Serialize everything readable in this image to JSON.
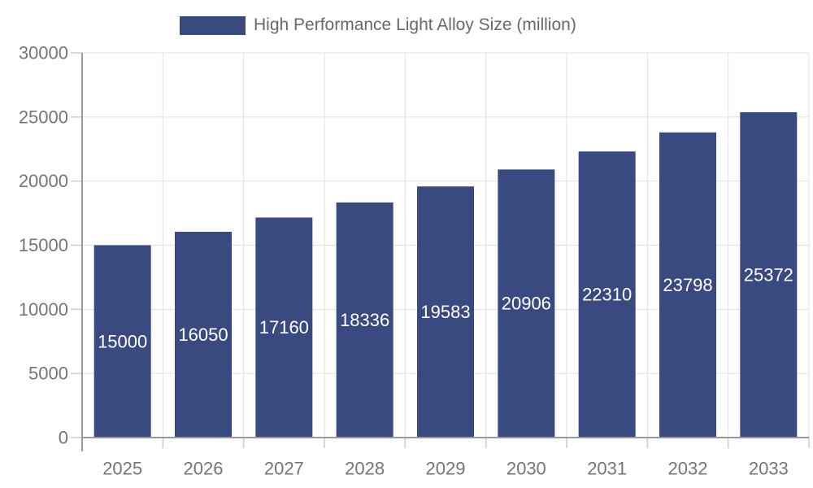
{
  "chart_data": {
    "type": "bar",
    "title": "",
    "xlabel": "",
    "ylabel": "",
    "categories": [
      "2025",
      "2026",
      "2027",
      "2028",
      "2029",
      "2030",
      "2031",
      "2032",
      "2033"
    ],
    "series": [
      {
        "name": "High Performance Light Alloy Size (million)",
        "values": [
          15000,
          16050,
          17160,
          18336,
          19583,
          20906,
          22310,
          23798,
          25372
        ]
      }
    ],
    "ylim": [
      0,
      30000
    ],
    "yticks": [
      0,
      5000,
      10000,
      15000,
      20000,
      25000,
      30000
    ],
    "grid": true,
    "legend_position": "top",
    "value_label_position": "inside-middle",
    "colors": {
      "bar": "#394a80",
      "bar_label": "#ffffff",
      "axis_text": "#757575",
      "legend_text": "#686868",
      "grid_line": "#e0e0e0",
      "axis_line": "#999999",
      "tick_line": "#cccccc",
      "background": "#ffffff"
    }
  }
}
